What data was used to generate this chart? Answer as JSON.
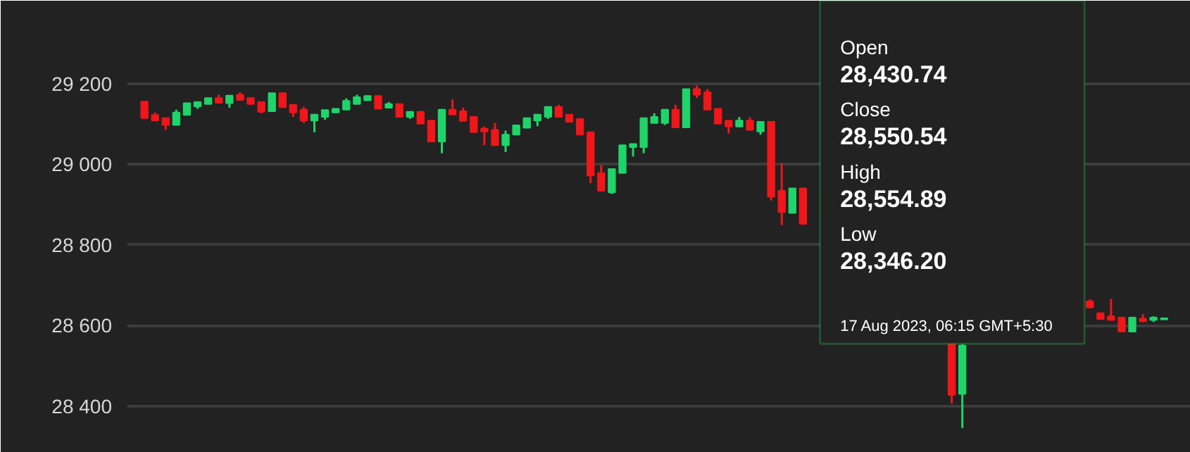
{
  "chart_data": {
    "type": "candlestick",
    "categories": [
      null,
      null,
      null,
      null,
      null,
      null,
      null,
      null,
      null,
      null,
      null,
      null,
      null,
      null,
      null,
      null,
      null,
      null,
      null,
      null,
      null,
      null,
      null,
      null,
      null,
      null,
      null,
      null,
      null,
      null,
      null,
      null,
      null,
      null,
      null,
      null,
      null,
      null,
      null,
      null,
      null,
      null,
      null,
      null,
      null,
      null,
      null,
      null,
      null,
      null,
      null,
      null,
      null,
      null,
      null,
      null,
      null,
      null,
      null,
      null,
      null,
      null,
      null,
      null,
      null,
      null,
      null,
      null,
      null,
      null,
      null,
      null,
      null,
      null,
      null,
      null,
      null,
      null,
      null,
      null,
      null,
      null,
      null,
      null,
      null,
      null,
      null,
      null,
      null,
      null,
      null,
      null,
      null,
      null,
      null,
      null,
      null
    ],
    "ohlc": [
      [
        29155,
        29155,
        29114,
        29114
      ],
      [
        29122,
        29128,
        29108,
        29108
      ],
      [
        29114,
        29114,
        29085,
        29097
      ],
      [
        29097,
        29135,
        29097,
        29128
      ],
      [
        29122,
        29151,
        29122,
        29151
      ],
      [
        29143,
        29154,
        29137,
        29154
      ],
      [
        29149,
        29164,
        29149,
        29164
      ],
      [
        29164,
        29172,
        29152,
        29152
      ],
      [
        29151,
        29170,
        29140,
        29170
      ],
      [
        29172,
        29178,
        29159,
        29159
      ],
      [
        29164,
        29164,
        29149,
        29149
      ],
      [
        29154,
        29154,
        29126,
        29130
      ],
      [
        29131,
        29176,
        29131,
        29176
      ],
      [
        29176,
        29176,
        29141,
        29141
      ],
      [
        29147,
        29147,
        29117,
        29128
      ],
      [
        29135,
        29142,
        29102,
        29108
      ],
      [
        29108,
        29123,
        29079,
        29123
      ],
      [
        29117,
        29134,
        29110,
        29134
      ],
      [
        29128,
        29137,
        29128,
        29137
      ],
      [
        29135,
        29163,
        29135,
        29157
      ],
      [
        29149,
        29172,
        29149,
        29166
      ],
      [
        29158,
        29169,
        29158,
        29169
      ],
      [
        29169,
        29169,
        29137,
        29137
      ],
      [
        29140,
        29154,
        29140,
        29149
      ],
      [
        29149,
        29149,
        29117,
        29117
      ],
      [
        29117,
        29130,
        29112,
        29130
      ],
      [
        29130,
        29130,
        29100,
        29100
      ],
      [
        29108,
        29108,
        29056,
        29056
      ],
      [
        29056,
        29135,
        29027,
        29135
      ],
      [
        29135,
        29160,
        29123,
        29123
      ],
      [
        29131,
        29140,
        29107,
        29107
      ],
      [
        29117,
        29117,
        29079,
        29079
      ],
      [
        29088,
        29093,
        29047,
        29081
      ],
      [
        29085,
        29102,
        29047,
        29047
      ],
      [
        29047,
        29083,
        29030,
        29073
      ],
      [
        29073,
        29096,
        29073,
        29096
      ],
      [
        29090,
        29114,
        29090,
        29114
      ],
      [
        29108,
        29123,
        29094,
        29123
      ],
      [
        29117,
        29142,
        29112,
        29142
      ],
      [
        29142,
        29147,
        29117,
        29117
      ],
      [
        29123,
        29123,
        29105,
        29105
      ],
      [
        29112,
        29112,
        29073,
        29073
      ],
      [
        29079,
        29079,
        28953,
        28972
      ],
      [
        28978,
        28998,
        28934,
        28934
      ],
      [
        28930,
        28988,
        28926,
        28988
      ],
      [
        28978,
        29047,
        28978,
        29047
      ],
      [
        29042,
        29050,
        29019,
        29050
      ],
      [
        29042,
        29114,
        29027,
        29114
      ],
      [
        29102,
        29126,
        29102,
        29117
      ],
      [
        29102,
        29135,
        29097,
        29135
      ],
      [
        29135,
        29147,
        29091,
        29091
      ],
      [
        29091,
        29186,
        29091,
        29186
      ],
      [
        29186,
        29195,
        29164,
        29172
      ],
      [
        29178,
        29186,
        29135,
        29135
      ],
      [
        29137,
        29137,
        29100,
        29100
      ],
      [
        29108,
        29108,
        29076,
        29093
      ],
      [
        29093,
        29117,
        29093,
        29108
      ],
      [
        29108,
        29117,
        29085,
        29085
      ],
      [
        29081,
        29105,
        29073,
        29105
      ],
      [
        29105,
        29105,
        28910,
        28919
      ],
      [
        28934,
        29002,
        28849,
        28881
      ],
      [
        28879,
        28940,
        28879,
        28940
      ],
      [
        28940,
        28940,
        28852,
        28852
      ],
      null,
      null,
      null,
      null,
      null,
      null,
      null,
      null,
      null,
      null,
      null,
      null,
      null,
      [
        28555,
        28560,
        28407,
        28428
      ],
      [
        28430.74,
        28554.89,
        28346.2,
        28550.54
      ],
      null,
      null,
      null,
      null,
      null,
      null,
      null,
      null,
      null,
      null,
      null,
      [
        28660,
        28665,
        28645,
        28645
      ],
      [
        28631,
        28631,
        28616,
        28616
      ],
      [
        28623,
        28666,
        28614,
        28614
      ],
      [
        28620,
        28620,
        28585,
        28585
      ],
      [
        28585,
        28620,
        28585,
        28620
      ],
      [
        28617,
        28628,
        28608,
        28611
      ],
      [
        28614,
        28623,
        28609,
        28620
      ],
      [
        28615,
        28619,
        28615,
        28618
      ]
    ],
    "colors": [
      "#f0161a",
      "#f0161a",
      "#f0161a",
      "#1fd46a",
      "#1fd46a",
      "#1fd46a",
      "#1fd46a",
      "#f0161a",
      "#1fd46a",
      "#f0161a",
      "#f0161a",
      "#f0161a",
      "#1fd46a",
      "#f0161a",
      "#f0161a",
      "#f0161a",
      "#1fd46a",
      "#1fd46a",
      "#1fd46a",
      "#1fd46a",
      "#1fd46a",
      "#1fd46a",
      "#f0161a",
      "#1fd46a",
      "#f0161a",
      "#1fd46a",
      "#f0161a",
      "#f0161a",
      "#1fd46a",
      "#f0161a",
      "#f0161a",
      "#f0161a",
      "#f0161a",
      "#f0161a",
      "#1fd46a",
      "#1fd46a",
      "#1fd46a",
      "#1fd46a",
      "#1fd46a",
      "#f0161a",
      "#f0161a",
      "#f0161a",
      "#f0161a",
      "#f0161a",
      "#1fd46a",
      "#1fd46a",
      "#1fd46a",
      "#1fd46a",
      "#1fd46a",
      "#1fd46a",
      "#f0161a",
      "#1fd46a",
      "#f0161a",
      "#f0161a",
      "#f0161a",
      "#f0161a",
      "#1fd46a",
      "#f0161a",
      "#1fd46a",
      "#f0161a",
      "#f0161a",
      "#1fd46a",
      "#f0161a",
      null,
      null,
      null,
      null,
      null,
      null,
      null,
      null,
      null,
      null,
      null,
      null,
      null,
      "#f0161a",
      "#1fd46a",
      null,
      null,
      null,
      null,
      null,
      null,
      null,
      null,
      null,
      null,
      null,
      "#f0161a",
      "#f0161a",
      "#f0161a",
      "#f0161a",
      "#1fd46a",
      "#f0161a",
      "#1fd46a",
      "#1fd46a"
    ],
    "ylim": [
      28285,
      29405
    ],
    "yticks": [
      {
        "value": 28400,
        "label": "28 400"
      },
      {
        "value": 28600,
        "label": "28 600"
      },
      {
        "value": 28800,
        "label": "28 800"
      },
      {
        "value": 29000,
        "label": "29 000"
      },
      {
        "value": 29200,
        "label": "29 200"
      }
    ],
    "grid": "y",
    "tick_labels": "y",
    "annotations": [
      "Open",
      "28,430.74",
      "Close",
      "28,550.54",
      "High",
      "28,554.89",
      "Low",
      "28,346.20",
      "17 Aug 2023, 06:15 GMT+5:30"
    ]
  }
}
